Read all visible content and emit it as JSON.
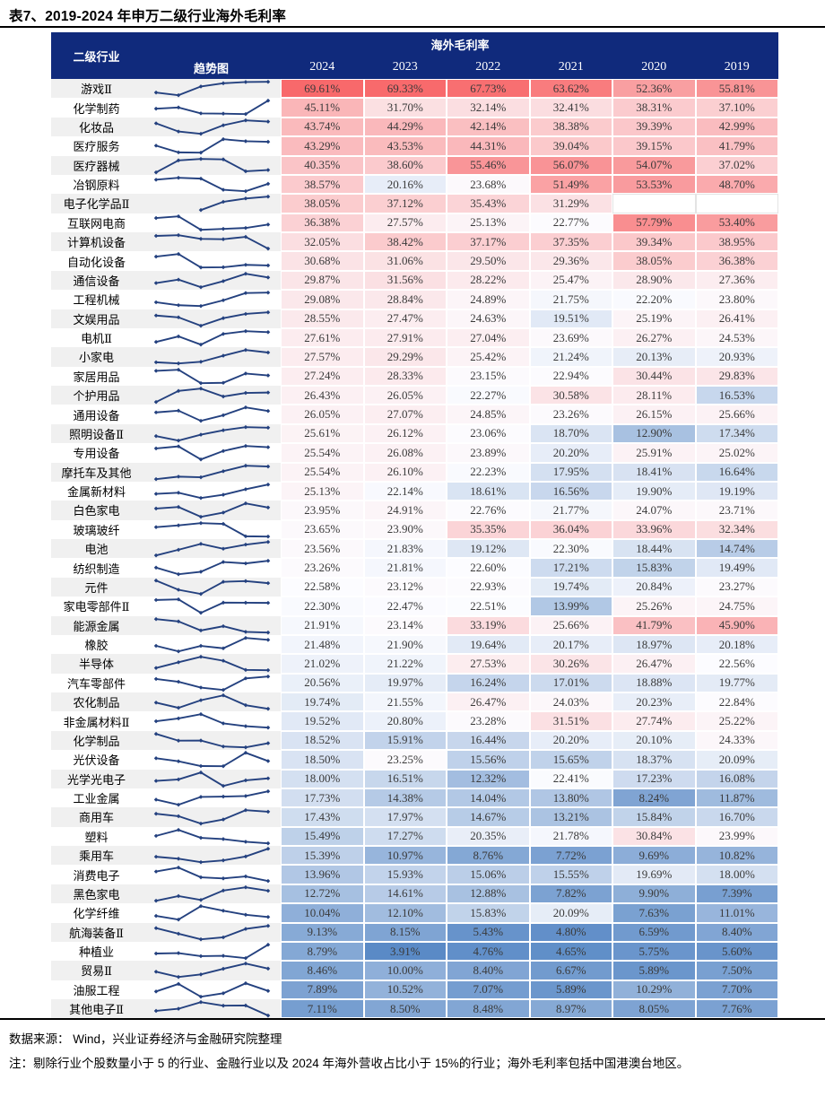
{
  "title": "表7、2019-2024 年申万二级行业海外毛利率",
  "table": {
    "col_industry": "二级行业",
    "col_trend": "趋势图",
    "group_header": "海外毛利率",
    "years": [
      "2024",
      "2023",
      "2022",
      "2021",
      "2020",
      "2019"
    ],
    "rows": [
      {
        "name": "游戏Ⅱ",
        "values": [
          69.61,
          69.33,
          67.73,
          63.62,
          52.36,
          55.81
        ]
      },
      {
        "name": "化学制药",
        "values": [
          45.11,
          31.7,
          32.14,
          32.41,
          38.31,
          37.1
        ]
      },
      {
        "name": "化妆品",
        "values": [
          43.74,
          44.29,
          42.14,
          38.38,
          39.39,
          42.99
        ]
      },
      {
        "name": "医疗服务",
        "values": [
          43.29,
          43.53,
          44.31,
          39.04,
          39.15,
          41.79
        ]
      },
      {
        "name": "医疗器械",
        "values": [
          40.35,
          38.6,
          55.46,
          56.07,
          54.07,
          37.02
        ]
      },
      {
        "name": "冶钢原料",
        "values": [
          38.57,
          20.16,
          23.68,
          51.49,
          53.53,
          48.7
        ]
      },
      {
        "name": "电子化学品Ⅱ",
        "values": [
          38.05,
          37.12,
          35.43,
          31.29,
          null,
          null
        ]
      },
      {
        "name": "互联网电商",
        "values": [
          36.38,
          27.57,
          25.13,
          22.77,
          57.79,
          53.4
        ]
      },
      {
        "name": "计算机设备",
        "values": [
          32.05,
          38.42,
          37.17,
          37.35,
          39.34,
          38.95
        ]
      },
      {
        "name": "自动化设备",
        "values": [
          30.68,
          31.06,
          29.5,
          29.36,
          38.05,
          36.38
        ]
      },
      {
        "name": "通信设备",
        "values": [
          29.87,
          31.56,
          28.22,
          25.47,
          28.9,
          27.36
        ]
      },
      {
        "name": "工程机械",
        "values": [
          29.08,
          28.84,
          24.89,
          21.75,
          22.2,
          23.8
        ]
      },
      {
        "name": "文娱用品",
        "values": [
          28.55,
          27.47,
          24.63,
          19.51,
          25.19,
          26.41
        ]
      },
      {
        "name": "电机Ⅱ",
        "values": [
          27.61,
          27.91,
          27.04,
          23.69,
          26.27,
          24.53
        ]
      },
      {
        "name": "小家电",
        "values": [
          27.57,
          29.29,
          25.42,
          21.24,
          20.13,
          20.93
        ]
      },
      {
        "name": "家居用品",
        "values": [
          27.24,
          28.33,
          23.15,
          22.94,
          30.44,
          29.83
        ]
      },
      {
        "name": "个护用品",
        "values": [
          26.43,
          26.05,
          22.27,
          30.58,
          28.11,
          16.53
        ]
      },
      {
        "name": "通用设备",
        "values": [
          26.05,
          27.07,
          24.85,
          23.26,
          26.15,
          25.66
        ]
      },
      {
        "name": "照明设备Ⅱ",
        "values": [
          25.61,
          26.12,
          23.06,
          18.7,
          12.9,
          17.34
        ]
      },
      {
        "name": "专用设备",
        "values": [
          25.54,
          26.08,
          23.89,
          20.2,
          25.91,
          25.02
        ]
      },
      {
        "name": "摩托车及其他",
        "values": [
          25.54,
          26.1,
          22.23,
          17.95,
          18.41,
          16.64
        ]
      },
      {
        "name": "金属新材料",
        "values": [
          25.13,
          22.14,
          18.61,
          16.56,
          19.9,
          19.19
        ]
      },
      {
        "name": "白色家电",
        "values": [
          23.95,
          24.91,
          22.76,
          21.77,
          24.07,
          23.71
        ]
      },
      {
        "name": "玻璃玻纤",
        "values": [
          23.65,
          23.9,
          35.35,
          36.04,
          33.96,
          32.34
        ]
      },
      {
        "name": "电池",
        "values": [
          23.56,
          21.83,
          19.12,
          22.3,
          18.44,
          14.74
        ]
      },
      {
        "name": "纺织制造",
        "values": [
          23.26,
          21.81,
          22.6,
          17.21,
          15.83,
          19.49
        ]
      },
      {
        "name": "元件",
        "values": [
          22.58,
          23.12,
          22.93,
          19.74,
          20.84,
          23.27
        ]
      },
      {
        "name": "家电零部件Ⅱ",
        "values": [
          22.3,
          22.47,
          22.51,
          13.99,
          25.26,
          24.75
        ]
      },
      {
        "name": "能源金属",
        "values": [
          21.91,
          23.14,
          33.19,
          25.66,
          41.79,
          45.9
        ]
      },
      {
        "name": "橡胶",
        "values": [
          21.48,
          21.9,
          19.64,
          20.17,
          18.97,
          20.18
        ]
      },
      {
        "name": "半导体",
        "values": [
          21.02,
          21.22,
          27.53,
          30.26,
          26.47,
          22.56
        ]
      },
      {
        "name": "汽车零部件",
        "values": [
          20.56,
          19.97,
          16.24,
          17.01,
          18.88,
          19.77
        ]
      },
      {
        "name": "农化制品",
        "values": [
          19.74,
          21.55,
          26.47,
          24.03,
          20.23,
          22.84
        ]
      },
      {
        "name": "非金属材料Ⅱ",
        "values": [
          19.52,
          20.8,
          23.28,
          31.51,
          27.74,
          25.22
        ]
      },
      {
        "name": "化学制品",
        "values": [
          18.52,
          15.91,
          16.44,
          20.2,
          20.1,
          24.33
        ]
      },
      {
        "name": "光伏设备",
        "values": [
          18.5,
          23.25,
          15.56,
          15.65,
          18.37,
          20.09
        ]
      },
      {
        "name": "光学光电子",
        "values": [
          18.0,
          16.51,
          12.32,
          22.41,
          17.23,
          16.08
        ]
      },
      {
        "name": "工业金属",
        "values": [
          17.73,
          14.38,
          14.04,
          13.8,
          8.24,
          11.87
        ]
      },
      {
        "name": "商用车",
        "values": [
          17.43,
          17.97,
          14.67,
          13.21,
          15.84,
          16.7
        ]
      },
      {
        "name": "塑料",
        "values": [
          15.49,
          17.27,
          20.35,
          21.78,
          30.84,
          23.99
        ]
      },
      {
        "name": "乘用车",
        "values": [
          15.39,
          10.97,
          8.76,
          7.72,
          9.69,
          10.82
        ]
      },
      {
        "name": "消费电子",
        "values": [
          13.96,
          15.93,
          15.06,
          15.55,
          19.69,
          18.0
        ]
      },
      {
        "name": "黑色家电",
        "values": [
          12.72,
          14.61,
          12.88,
          7.82,
          9.9,
          7.39
        ]
      },
      {
        "name": "化学纤维",
        "values": [
          10.04,
          12.1,
          15.83,
          20.09,
          7.63,
          11.01
        ]
      },
      {
        "name": "航海装备Ⅱ",
        "values": [
          9.13,
          8.15,
          5.43,
          4.8,
          6.59,
          8.4
        ]
      },
      {
        "name": "种植业",
        "values": [
          8.79,
          3.91,
          4.76,
          4.65,
          5.75,
          5.6
        ]
      },
      {
        "name": "贸易Ⅱ",
        "values": [
          8.46,
          10.0,
          8.4,
          6.67,
          5.89,
          7.5
        ]
      },
      {
        "name": "油服工程",
        "values": [
          7.89,
          10.52,
          7.07,
          5.89,
          10.29,
          7.7
        ]
      },
      {
        "name": "其他电子Ⅱ",
        "values": [
          7.11,
          8.5,
          8.48,
          8.97,
          8.05,
          7.76
        ]
      }
    ]
  },
  "heatmap": {
    "low_color": "#5A8AC6",
    "mid_color": "#FCFCFF",
    "high_color": "#F8696B",
    "midpoint": "percentile-50"
  },
  "colors": {
    "header_bg": "#102A7C",
    "header_text": "#FFFFFF",
    "stripe": "#F0F0F0",
    "sparkline": "#24417F",
    "value_text": "#3A3A3A"
  },
  "footer": {
    "source": "数据来源： Wind，兴业证券经济与金融研究院整理",
    "note": "注：剔除行业个股数量小于 5 的行业、金融行业以及 2024 年海外营收占比小于 15%的行业；海外毛利率包括中国港澳台地区。"
  }
}
